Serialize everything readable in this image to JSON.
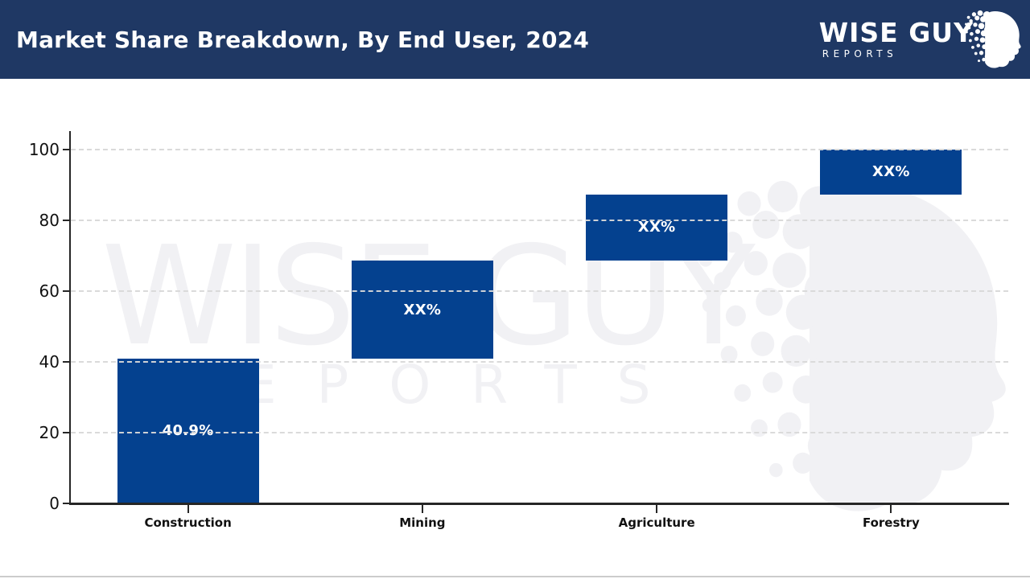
{
  "header": {
    "title": "Market Share Breakdown, By End User, 2024",
    "logo": {
      "line1": "WISE GUY",
      "line2": "REPORTS"
    }
  },
  "watermark": {
    "line1": "WISE GUY",
    "line2": "REPORTS"
  },
  "chart_data": {
    "type": "bar",
    "subtype": "waterfall-floating-bars",
    "title": "Market Share Breakdown, By End User, 2024",
    "categories": [
      "Construction",
      "Mining",
      "Agriculture",
      "Forestry"
    ],
    "segments": [
      {
        "category": "Construction",
        "start": 0,
        "end": 40.9,
        "label": "40.9%"
      },
      {
        "category": "Mining",
        "start": 40.9,
        "end": 68.6,
        "label": "XX%"
      },
      {
        "category": "Agriculture",
        "start": 68.6,
        "end": 87.3,
        "label": "XX%"
      },
      {
        "category": "Forestry",
        "start": 87.3,
        "end": 100,
        "label": "XX%"
      }
    ],
    "xlabel": "",
    "ylabel": "",
    "yticks": [
      0,
      20,
      40,
      60,
      80,
      100
    ],
    "ylim": [
      0,
      105.2
    ],
    "grid": "horizontal-dashed",
    "legend": "none",
    "bar_label_values_hidden_as": "XX%"
  },
  "colors": {
    "header_bg": "#1f3864",
    "bar": "#04418f",
    "bar_label": "#ffffff",
    "watermark": "#f1f1f4",
    "gridline": "#d9d9d9",
    "axis": "#262626",
    "tick_label": "#111111",
    "bottom_rule": "#cccccc"
  }
}
